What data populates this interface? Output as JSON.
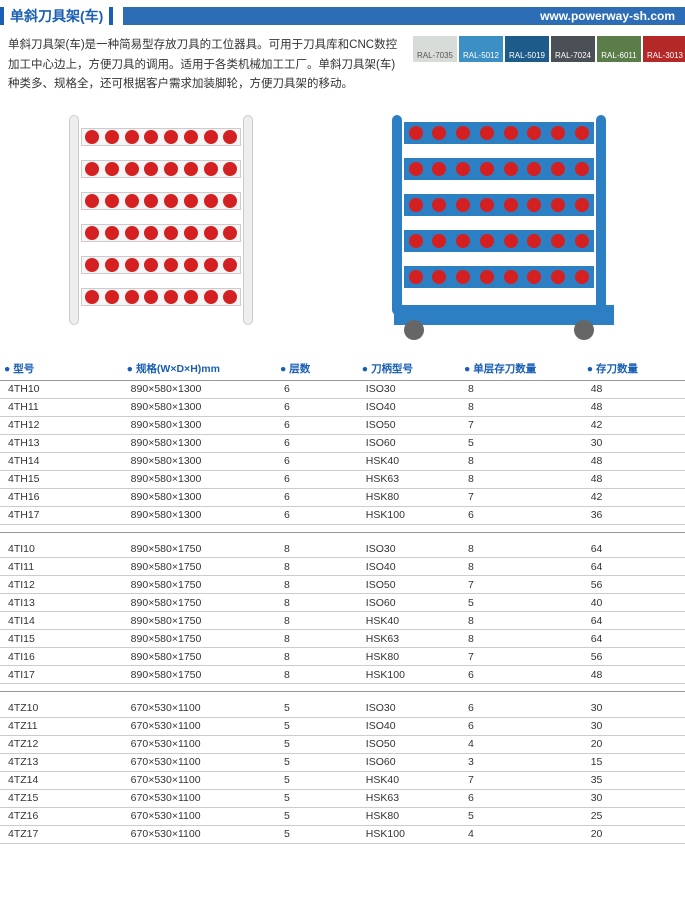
{
  "header": {
    "title": "单斜刀具架(车)",
    "url": "www.powerway-sh.com"
  },
  "description": "单斜刀具架(车)是一种简易型存放刀具的工位器具。可用于刀具库和CNC数控加工中心边上，方便刀具的调用。适用于各类机械加工工厂。单斜刀具架(车)种类多、规格全，还可根据客户需求加装脚轮，方便刀具架的移动。",
  "swatches": [
    {
      "label": "RAL-7035",
      "color": "#d8dcd8",
      "text": "#555"
    },
    {
      "label": "RAL-5012",
      "color": "#3b8fc4",
      "text": "#fff"
    },
    {
      "label": "RAL-5019",
      "color": "#1d5c8a",
      "text": "#fff"
    },
    {
      "label": "RAL-7024",
      "color": "#4a5055",
      "text": "#fff"
    },
    {
      "label": "RAL-6011",
      "color": "#5a7d4a",
      "text": "#fff"
    },
    {
      "label": "RAL-3013",
      "color": "#b52828",
      "text": "#fff"
    }
  ],
  "images": {
    "rack1_shelves": 6,
    "rack1_holders": 8,
    "rack2_shelves": 5,
    "rack2_holders": 8
  },
  "table": {
    "columns": [
      "型号",
      "规格(W×D×H)mm",
      "层数",
      "刀柄型号",
      "单层存刀数量",
      "存刀数量"
    ],
    "groups": [
      [
        [
          "4TH10",
          "890×580×1300",
          "6",
          "ISO30",
          "8",
          "48"
        ],
        [
          "4TH11",
          "890×580×1300",
          "6",
          "ISO40",
          "8",
          "48"
        ],
        [
          "4TH12",
          "890×580×1300",
          "6",
          "ISO50",
          "7",
          "42"
        ],
        [
          "4TH13",
          "890×580×1300",
          "6",
          "ISO60",
          "5",
          "30"
        ],
        [
          "4TH14",
          "890×580×1300",
          "6",
          "HSK40",
          "8",
          "48"
        ],
        [
          "4TH15",
          "890×580×1300",
          "6",
          "HSK63",
          "8",
          "48"
        ],
        [
          "4TH16",
          "890×580×1300",
          "6",
          "HSK80",
          "7",
          "42"
        ],
        [
          "4TH17",
          "890×580×1300",
          "6",
          "HSK100",
          "6",
          "36"
        ]
      ],
      [
        [
          "4TI10",
          "890×580×1750",
          "8",
          "ISO30",
          "8",
          "64"
        ],
        [
          "4TI11",
          "890×580×1750",
          "8",
          "ISO40",
          "8",
          "64"
        ],
        [
          "4TI12",
          "890×580×1750",
          "8",
          "ISO50",
          "7",
          "56"
        ],
        [
          "4TI13",
          "890×580×1750",
          "8",
          "ISO60",
          "5",
          "40"
        ],
        [
          "4TI14",
          "890×580×1750",
          "8",
          "HSK40",
          "8",
          "64"
        ],
        [
          "4TI15",
          "890×580×1750",
          "8",
          "HSK63",
          "8",
          "64"
        ],
        [
          "4TI16",
          "890×580×1750",
          "8",
          "HSK80",
          "7",
          "56"
        ],
        [
          "4TI17",
          "890×580×1750",
          "8",
          "HSK100",
          "6",
          "48"
        ]
      ],
      [
        [
          "4TZ10",
          "670×530×1100",
          "5",
          "ISO30",
          "6",
          "30"
        ],
        [
          "4TZ11",
          "670×530×1100",
          "5",
          "ISO40",
          "6",
          "30"
        ],
        [
          "4TZ12",
          "670×530×1100",
          "5",
          "ISO50",
          "4",
          "20"
        ],
        [
          "4TZ13",
          "670×530×1100",
          "5",
          "ISO60",
          "3",
          "15"
        ],
        [
          "4TZ14",
          "670×530×1100",
          "5",
          "HSK40",
          "7",
          "35"
        ],
        [
          "4TZ15",
          "670×530×1100",
          "5",
          "HSK63",
          "6",
          "30"
        ],
        [
          "4TZ16",
          "670×530×1100",
          "5",
          "HSK80",
          "5",
          "25"
        ],
        [
          "4TZ17",
          "670×530×1100",
          "5",
          "HSK100",
          "4",
          "20"
        ]
      ]
    ]
  }
}
